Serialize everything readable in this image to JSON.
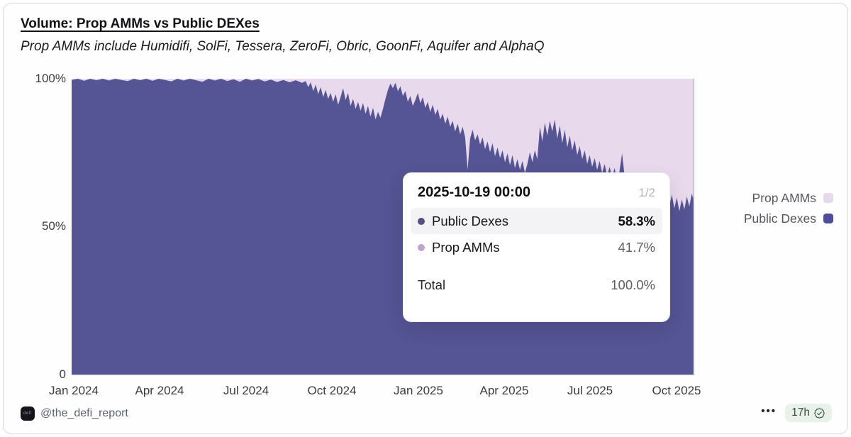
{
  "header": {
    "title": "Volume: Prop AMMs vs Public DEXes",
    "subtitle": "Prop AMMs include Humidifi, SolFi, Tessera, ZeroFi, Obric, GoonFi, Aquifer and AlphaQ"
  },
  "chart_data": {
    "type": "area",
    "stacked_percent": true,
    "title": "Volume: Prop AMMs vs Public DEXes",
    "x_ticks": [
      "Jan 2024",
      "Apr 2024",
      "Jul 2024",
      "Oct 2024",
      "Jan 2025",
      "Apr 2025",
      "Jul 2025",
      "Oct 2025"
    ],
    "y_ticks": [
      "100%",
      "50%",
      "0"
    ],
    "ylim": [
      0,
      100
    ],
    "x_range": [
      "2024-01-01",
      "2025-10-19"
    ],
    "grid": false,
    "legend_position": "right",
    "legend": [
      {
        "label": "Prop AMMs",
        "color": "#e6d9e9"
      },
      {
        "label": "Public Dexes",
        "color": "#4f4d9c"
      }
    ],
    "colors": {
      "public_dexes_fill": "#555494",
      "prop_amms_fill": "#e9d9ec",
      "crosshair": "#b9b9c2"
    },
    "hover_x_frac": 1.0,
    "series": [
      {
        "name": "Public Dexes",
        "unit": "% share of volume",
        "note": "points are [fraction of x-range, percent]; Prop AMMs is the remainder to 100%",
        "points": [
          [
            0.0,
            99.6
          ],
          [
            0.01,
            100
          ],
          [
            0.02,
            99.3
          ],
          [
            0.03,
            100
          ],
          [
            0.04,
            99.5
          ],
          [
            0.05,
            100
          ],
          [
            0.06,
            99.4
          ],
          [
            0.07,
            100
          ],
          [
            0.08,
            99.6
          ],
          [
            0.09,
            99.2
          ],
          [
            0.1,
            100
          ],
          [
            0.11,
            99.5
          ],
          [
            0.12,
            100
          ],
          [
            0.13,
            99.3
          ],
          [
            0.14,
            100
          ],
          [
            0.15,
            99.6
          ],
          [
            0.16,
            99.1
          ],
          [
            0.17,
            100
          ],
          [
            0.18,
            99.4
          ],
          [
            0.19,
            100
          ],
          [
            0.2,
            99.5
          ],
          [
            0.21,
            99.0
          ],
          [
            0.22,
            100
          ],
          [
            0.23,
            99.4
          ],
          [
            0.24,
            100
          ],
          [
            0.25,
            99.2
          ],
          [
            0.26,
            99.8
          ],
          [
            0.27,
            99.0
          ],
          [
            0.28,
            100
          ],
          [
            0.29,
            99.4
          ],
          [
            0.3,
            99.9
          ],
          [
            0.31,
            99.1
          ],
          [
            0.32,
            99.7
          ],
          [
            0.33,
            98.9
          ],
          [
            0.34,
            99.6
          ],
          [
            0.35,
            98.8
          ],
          [
            0.36,
            99.5
          ],
          [
            0.37,
            98.6
          ],
          [
            0.376,
            99.2
          ],
          [
            0.38,
            97.2
          ],
          [
            0.384,
            98.8
          ],
          [
            0.388,
            95.8
          ],
          [
            0.392,
            98.0
          ],
          [
            0.396,
            94.8
          ],
          [
            0.4,
            97.2
          ],
          [
            0.404,
            93.8
          ],
          [
            0.408,
            96.2
          ],
          [
            0.412,
            93.2
          ],
          [
            0.416,
            95.2
          ],
          [
            0.42,
            92.2
          ],
          [
            0.424,
            94.8
          ],
          [
            0.428,
            91.2
          ],
          [
            0.432,
            93.8
          ],
          [
            0.436,
            96.8
          ],
          [
            0.44,
            92.8
          ],
          [
            0.444,
            95.2
          ],
          [
            0.448,
            90.8
          ],
          [
            0.452,
            93.2
          ],
          [
            0.456,
            89.8
          ],
          [
            0.46,
            92.2
          ],
          [
            0.464,
            89.2
          ],
          [
            0.468,
            91.8
          ],
          [
            0.472,
            88.2
          ],
          [
            0.476,
            90.8
          ],
          [
            0.48,
            87.2
          ],
          [
            0.484,
            90.2
          ],
          [
            0.488,
            86.2
          ],
          [
            0.492,
            88.8
          ],
          [
            0.496,
            86.8
          ],
          [
            0.5,
            89.8
          ],
          [
            0.504,
            93.2
          ],
          [
            0.508,
            96.2
          ],
          [
            0.512,
            98.4
          ],
          [
            0.516,
            96.8
          ],
          [
            0.52,
            98.6
          ],
          [
            0.524,
            95.8
          ],
          [
            0.528,
            97.4
          ],
          [
            0.532,
            94.2
          ],
          [
            0.536,
            95.8
          ],
          [
            0.54,
            92.2
          ],
          [
            0.544,
            94.2
          ],
          [
            0.548,
            90.8
          ],
          [
            0.552,
            92.8
          ],
          [
            0.556,
            95.2
          ],
          [
            0.56,
            91.8
          ],
          [
            0.564,
            93.8
          ],
          [
            0.568,
            90.2
          ],
          [
            0.572,
            92.2
          ],
          [
            0.576,
            88.8
          ],
          [
            0.58,
            91.2
          ],
          [
            0.584,
            87.8
          ],
          [
            0.588,
            89.8
          ],
          [
            0.592,
            86.2
          ],
          [
            0.596,
            88.2
          ],
          [
            0.6,
            84.8
          ],
          [
            0.604,
            87.2
          ],
          [
            0.608,
            83.8
          ],
          [
            0.612,
            85.8
          ],
          [
            0.616,
            82.2
          ],
          [
            0.62,
            84.8
          ],
          [
            0.624,
            81.2
          ],
          [
            0.628,
            83.8
          ],
          [
            0.632,
            80.2
          ],
          [
            0.636,
            69.2
          ],
          [
            0.64,
            79.8
          ],
          [
            0.644,
            82.8
          ],
          [
            0.648,
            79.2
          ],
          [
            0.652,
            81.2
          ],
          [
            0.656,
            77.8
          ],
          [
            0.66,
            80.2
          ],
          [
            0.664,
            76.2
          ],
          [
            0.668,
            78.8
          ],
          [
            0.672,
            75.2
          ],
          [
            0.676,
            78.2
          ],
          [
            0.68,
            73.8
          ],
          [
            0.684,
            76.8
          ],
          [
            0.688,
            73.2
          ],
          [
            0.692,
            75.8
          ],
          [
            0.696,
            71.8
          ],
          [
            0.7,
            74.8
          ],
          [
            0.704,
            70.8
          ],
          [
            0.708,
            74.2
          ],
          [
            0.712,
            69.8
          ],
          [
            0.716,
            72.8
          ],
          [
            0.72,
            69.2
          ],
          [
            0.724,
            72.2
          ],
          [
            0.728,
            68.2
          ],
          [
            0.732,
            71.2
          ],
          [
            0.736,
            75.2
          ],
          [
            0.74,
            71.8
          ],
          [
            0.744,
            75.8
          ],
          [
            0.748,
            72.8
          ],
          [
            0.752,
            83.8
          ],
          [
            0.756,
            78.8
          ],
          [
            0.76,
            85.2
          ],
          [
            0.764,
            80.8
          ],
          [
            0.768,
            85.8
          ],
          [
            0.772,
            82.2
          ],
          [
            0.776,
            86.2
          ],
          [
            0.78,
            79.8
          ],
          [
            0.784,
            84.2
          ],
          [
            0.788,
            78.2
          ],
          [
            0.792,
            82.8
          ],
          [
            0.796,
            76.8
          ],
          [
            0.8,
            80.8
          ],
          [
            0.804,
            75.8
          ],
          [
            0.808,
            79.2
          ],
          [
            0.812,
            74.2
          ],
          [
            0.816,
            77.2
          ],
          [
            0.82,
            72.8
          ],
          [
            0.824,
            75.8
          ],
          [
            0.828,
            71.2
          ],
          [
            0.832,
            74.2
          ],
          [
            0.836,
            70.2
          ],
          [
            0.84,
            73.2
          ],
          [
            0.844,
            69.2
          ],
          [
            0.848,
            72.2
          ],
          [
            0.852,
            68.2
          ],
          [
            0.856,
            71.2
          ],
          [
            0.86,
            67.2
          ],
          [
            0.864,
            70.2
          ],
          [
            0.868,
            66.8
          ],
          [
            0.872,
            69.8
          ],
          [
            0.876,
            65.8
          ],
          [
            0.88,
            68.8
          ],
          [
            0.884,
            74.8
          ],
          [
            0.888,
            67.2
          ],
          [
            0.892,
            64.2
          ],
          [
            0.896,
            66.8
          ],
          [
            0.9,
            63.2
          ],
          [
            0.904,
            66.2
          ],
          [
            0.908,
            62.2
          ],
          [
            0.912,
            65.2
          ],
          [
            0.916,
            61.2
          ],
          [
            0.92,
            64.2
          ],
          [
            0.924,
            60.2
          ],
          [
            0.928,
            63.2
          ],
          [
            0.932,
            59.2
          ],
          [
            0.936,
            62.2
          ],
          [
            0.94,
            64.8
          ],
          [
            0.944,
            58.2
          ],
          [
            0.948,
            47.2
          ],
          [
            0.952,
            62.8
          ],
          [
            0.956,
            65.2
          ],
          [
            0.96,
            57.2
          ],
          [
            0.964,
            60.8
          ],
          [
            0.968,
            56.2
          ],
          [
            0.972,
            59.8
          ],
          [
            0.976,
            55.2
          ],
          [
            0.98,
            59.2
          ],
          [
            0.984,
            55.8
          ],
          [
            0.988,
            60.2
          ],
          [
            0.992,
            56.8
          ],
          [
            0.996,
            61.2
          ],
          [
            1.0,
            58.3
          ]
        ]
      },
      {
        "name": "Prop AMMs",
        "unit": "% share of volume",
        "derived": "100 - Public Dexes"
      }
    ]
  },
  "tooltip": {
    "date": "2025-10-19 00:00",
    "page": "1/2",
    "rows": [
      {
        "label": "Public Dexes",
        "value": "58.3%",
        "dot_color": "#534f83",
        "highlight": true
      },
      {
        "label": "Prop AMMs",
        "value": "41.7%",
        "dot_color": "#c1a3cc",
        "highlight": false
      }
    ],
    "total_label": "Total",
    "total_value": "100.0%"
  },
  "footer": {
    "handle": "@the_defi_report",
    "more_label": "•••",
    "time": "17h"
  }
}
